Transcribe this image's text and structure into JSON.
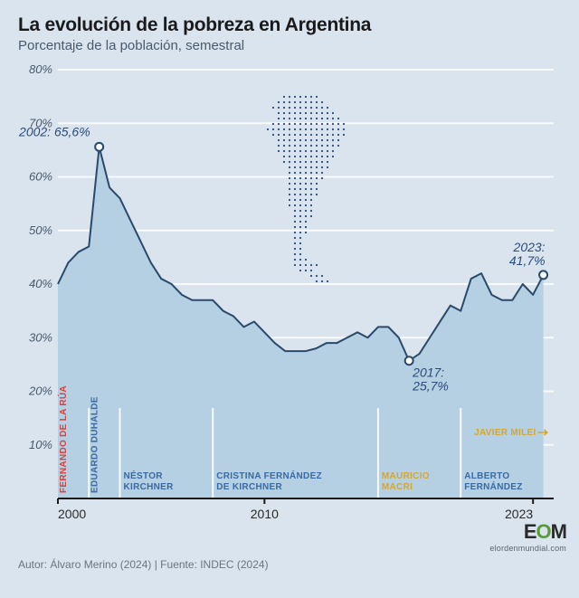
{
  "title": "La evolución de la pobreza en Argentina",
  "subtitle": "Porcentaje de la población, semestral",
  "source": "Autor: Álvaro Merino (2024) | Fuente: INDEC (2024)",
  "logo": {
    "text": "EOM",
    "sub": "elordenmundial.com"
  },
  "chart": {
    "type": "area",
    "background": "#d9e4ef",
    "fill": "#b5cfe3",
    "line_color": "#2a4a6a",
    "line_width": 2,
    "grid_color": "#ffffff",
    "axis_color": "#1a1a1a",
    "ylim": [
      0,
      80
    ],
    "ytick_step": 10,
    "ytick_suffix": "%",
    "xlim": [
      2000,
      2024
    ],
    "xticks": [
      2000,
      2010,
      2023
    ],
    "x": [
      2000,
      2000.5,
      2001,
      2001.5,
      2002,
      2002.5,
      2003,
      2003.5,
      2004,
      2004.5,
      2005,
      2005.5,
      2006,
      2006.5,
      2007,
      2007.5,
      2008,
      2008.5,
      2009,
      2009.5,
      2010,
      2010.5,
      2011,
      2011.5,
      2012,
      2012.5,
      2013,
      2013.5,
      2014,
      2014.5,
      2015,
      2015.5,
      2016,
      2016.5,
      2017,
      2017.5,
      2018,
      2018.5,
      2019,
      2019.5,
      2020,
      2020.5,
      2021,
      2021.5,
      2022,
      2022.5,
      2023,
      2023.5
    ],
    "y": [
      40,
      44,
      46,
      47,
      65.6,
      58,
      56,
      52,
      48,
      44,
      41,
      40,
      38,
      37,
      37,
      37,
      35,
      34,
      32,
      33,
      31,
      29,
      27.5,
      27.5,
      27.5,
      28,
      29,
      29,
      30,
      31,
      30,
      32,
      32,
      30,
      25.7,
      27,
      30,
      33,
      36,
      35,
      41,
      42,
      38,
      37,
      37,
      40,
      38,
      41.7
    ],
    "markers": [
      {
        "x": 2002,
        "y": 65.6,
        "label": "2002: 65,6%",
        "label_pos": "top-left",
        "label_color": "#2a4a7a"
      },
      {
        "x": 2017,
        "y": 25.7,
        "label": "2017:\n25,7%",
        "label_pos": "bottom",
        "label_color": "#2a4a7a"
      },
      {
        "x": 2023.5,
        "y": 41.7,
        "label": "2023:\n41,7%",
        "label_pos": "top",
        "label_color": "#2a4a7a"
      }
    ],
    "presidents": [
      {
        "start": 2000,
        "end": 2001.5,
        "label": "FERNANDO DE LA RÚA",
        "color": "#d04545",
        "vertical": true
      },
      {
        "start": 2001.5,
        "end": 2003,
        "label": "EDUARDO DUHALDE",
        "color": "#3a6aa0",
        "vertical": true
      },
      {
        "start": 2003,
        "end": 2007.5,
        "label": "NÉSTOR\nKIRCHNER",
        "color": "#3a6aa0",
        "vertical": false
      },
      {
        "start": 2007.5,
        "end": 2015.5,
        "label": "CRISTINA FERNÁNDEZ\nDE KIRCHNER",
        "color": "#3a6aa0",
        "vertical": false
      },
      {
        "start": 2015.5,
        "end": 2019.5,
        "label": "MAURICIO\nMACRI",
        "color": "#d4a830",
        "vertical": false
      },
      {
        "start": 2019.5,
        "end": 2023.5,
        "label": "ALBERTO\nFERNÁNDEZ",
        "color": "#3a6aa0",
        "vertical": false
      }
    ],
    "milei": {
      "label": "JAVIER MILEI",
      "color": "#d4a830",
      "x": 2023.5
    },
    "label_fontsize": 14,
    "pres_fontsize": 10
  },
  "argentina_outline": {
    "color": "#2a4a7a",
    "dot_radius": 1.1,
    "cols_pattern": [
      [
        0,
        4,
        10
      ],
      [
        1,
        3,
        11
      ],
      [
        2,
        2,
        12
      ],
      [
        3,
        3,
        13
      ],
      [
        4,
        3,
        14
      ],
      [
        5,
        2,
        15
      ],
      [
        6,
        1,
        15
      ],
      [
        7,
        2,
        15
      ],
      [
        8,
        3,
        14
      ],
      [
        9,
        3,
        14
      ],
      [
        10,
        3,
        13
      ],
      [
        11,
        4,
        13
      ],
      [
        12,
        4,
        12
      ],
      [
        13,
        5,
        12
      ],
      [
        14,
        5,
        11
      ],
      [
        15,
        5,
        11
      ],
      [
        16,
        5,
        10
      ],
      [
        17,
        5,
        10
      ],
      [
        18,
        5,
        10
      ],
      [
        19,
        5,
        9
      ],
      [
        20,
        5,
        9
      ],
      [
        21,
        6,
        9
      ],
      [
        22,
        6,
        9
      ],
      [
        23,
        6,
        8
      ],
      [
        24,
        6,
        8
      ],
      [
        25,
        6,
        8
      ],
      [
        26,
        6,
        7
      ],
      [
        27,
        6,
        7
      ],
      [
        28,
        6,
        7
      ],
      [
        29,
        6,
        7
      ],
      [
        30,
        6,
        8
      ],
      [
        31,
        6,
        10
      ],
      [
        32,
        7,
        9
      ],
      [
        33,
        9,
        11
      ],
      [
        34,
        10,
        12
      ]
    ]
  }
}
